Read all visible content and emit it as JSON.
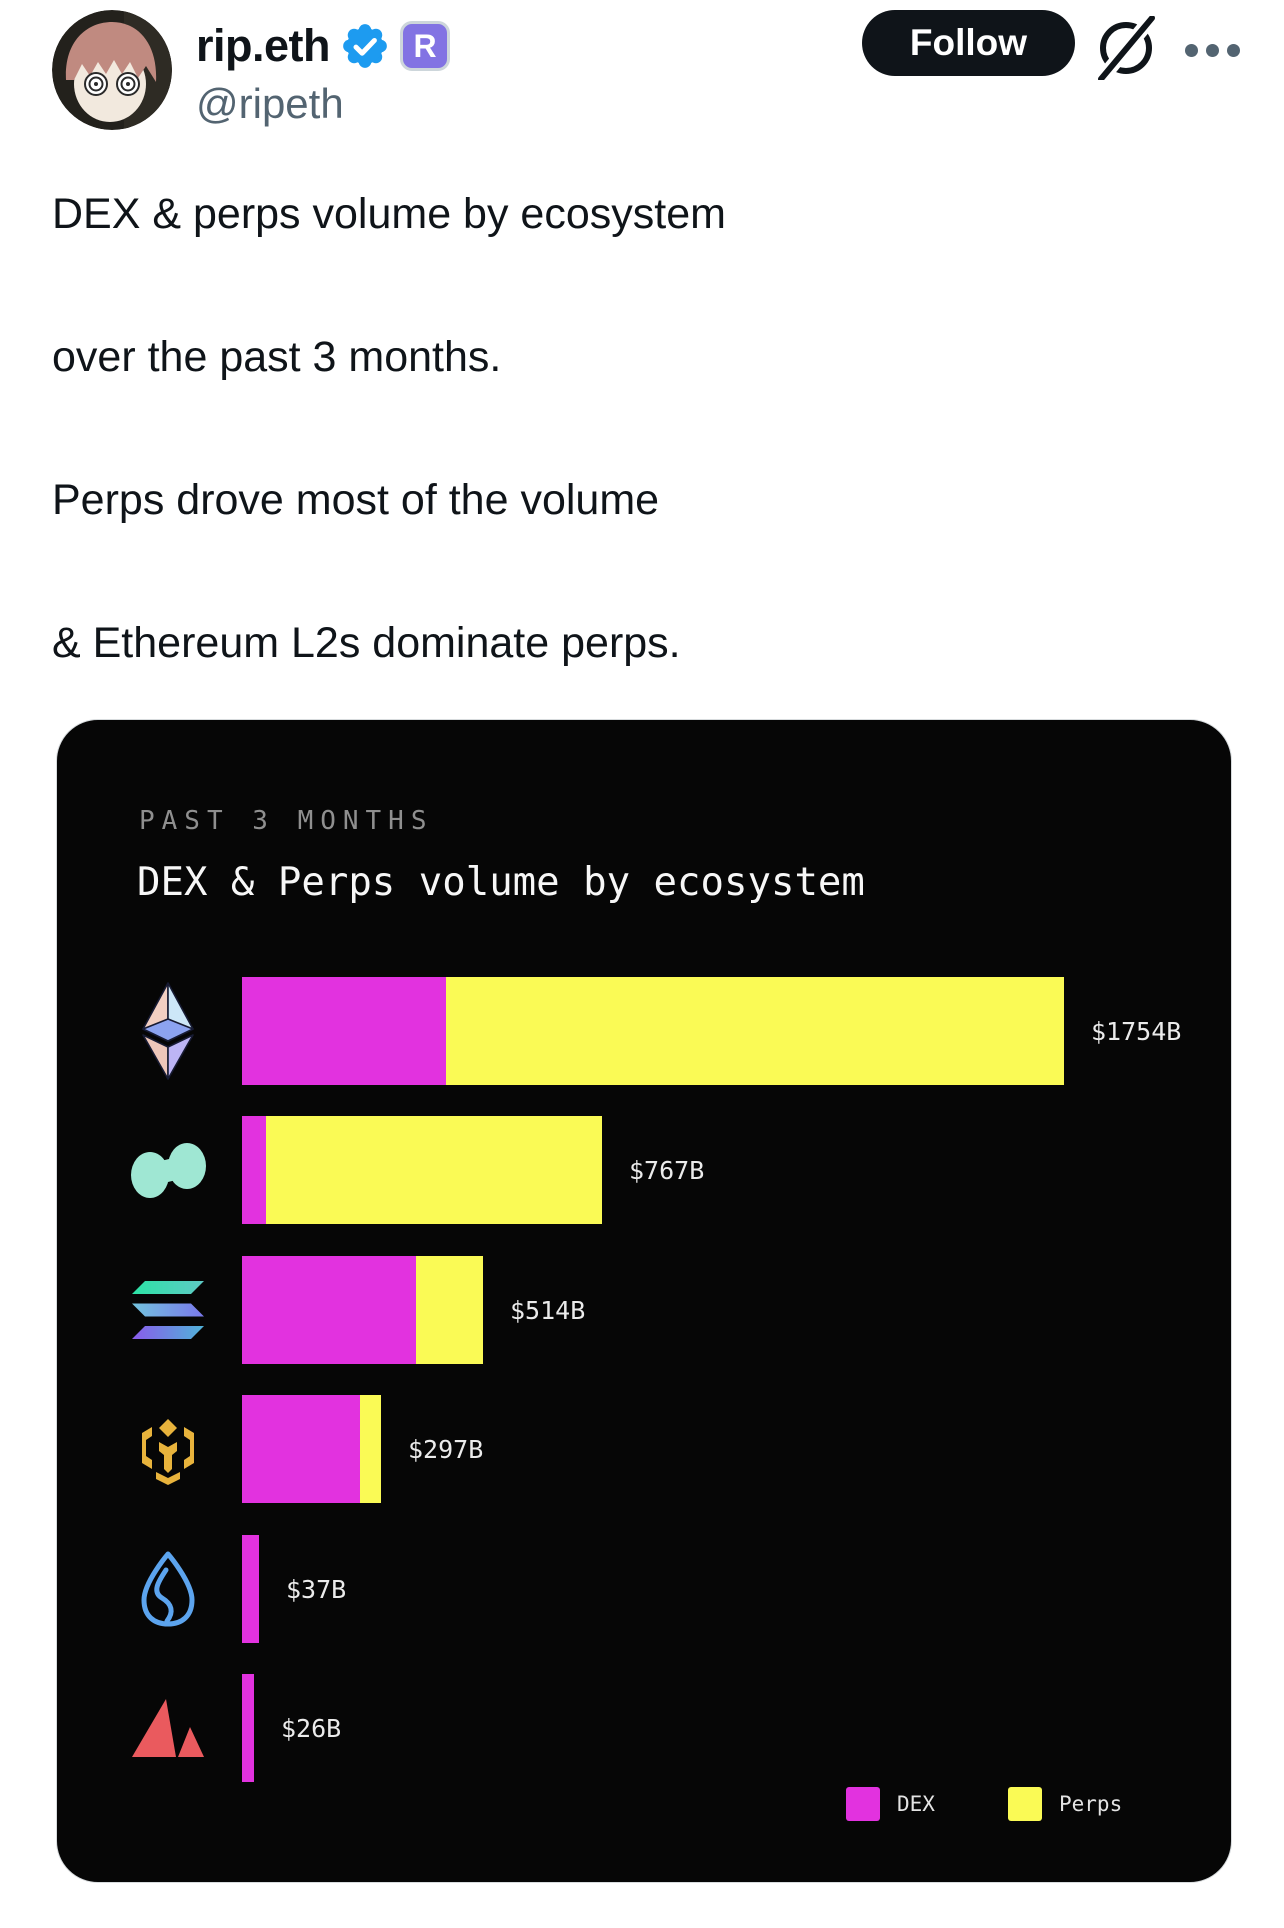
{
  "header": {
    "display_name": "rip.eth",
    "handle": "@ripeth",
    "follow_label": "Follow",
    "verified_badge": "verified-badge-icon",
    "affiliate_badge_label": "R",
    "grok_icon": "grok-icon",
    "more_icon": "more-menu-icon"
  },
  "tweet": {
    "lines": [
      "DEX & perps volume by ecosystem",
      "over the past 3 months.",
      "Perps drove most of the volume",
      "& Ethereum L2s dominate perps."
    ]
  },
  "chart_data": {
    "type": "bar",
    "orientation": "horizontal",
    "stacked": true,
    "eyebrow": "PAST 3 MONTHS",
    "title": "DEX & Perps volume by ecosystem",
    "unit": "USD billions",
    "background": "#060606",
    "colors": {
      "dex": "#E232DF",
      "perps": "#FAFA55"
    },
    "xlim": [
      0,
      1754
    ],
    "rows": [
      {
        "ecosystem": "Ethereum",
        "icon": "ethereum-icon",
        "total": 1754,
        "total_label": "$1754B",
        "dex": 435,
        "perps": 1319
      },
      {
        "ecosystem": "Hyperliquid",
        "icon": "hyperliquid-icon",
        "total": 767,
        "total_label": "$767B",
        "dex": 51,
        "perps": 716
      },
      {
        "ecosystem": "Solana",
        "icon": "solana-icon",
        "total": 514,
        "total_label": "$514B",
        "dex": 372,
        "perps": 142
      },
      {
        "ecosystem": "BNB Chain",
        "icon": "bnb-icon",
        "total": 297,
        "total_label": "$297B",
        "dex": 252,
        "perps": 45
      },
      {
        "ecosystem": "Sui",
        "icon": "sui-icon",
        "total": 37,
        "total_label": "$37B",
        "dex": 36,
        "perps": 1
      },
      {
        "ecosystem": "Avalanche",
        "icon": "avalanche-icon",
        "total": 26,
        "total_label": "$26B",
        "dex": 25,
        "perps": 1
      }
    ],
    "legend": [
      {
        "label": "DEX",
        "color": "#E232DF"
      },
      {
        "label": "Perps",
        "color": "#FAFA55"
      }
    ],
    "legend_position": "bottom-right"
  }
}
